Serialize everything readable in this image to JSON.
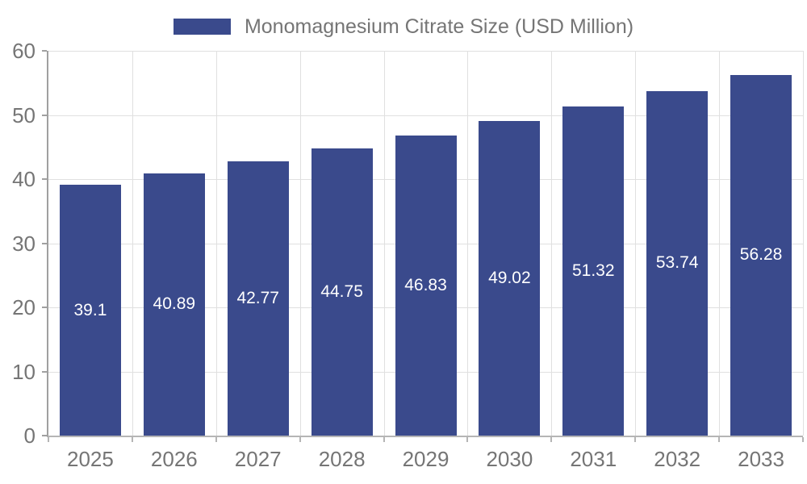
{
  "chart_data": {
    "type": "bar",
    "legend": "Monomagnesium Citrate Size (USD Million)",
    "categories": [
      "2025",
      "2026",
      "2027",
      "2028",
      "2029",
      "2030",
      "2031",
      "2032",
      "2033"
    ],
    "values": [
      39.1,
      40.89,
      42.77,
      44.75,
      46.83,
      49.02,
      51.32,
      53.74,
      56.28
    ],
    "value_labels": [
      "39.1",
      "40.89",
      "42.77",
      "44.75",
      "46.83",
      "49.02",
      "51.32",
      "53.74",
      "56.28"
    ],
    "yticks": [
      0,
      10,
      20,
      30,
      40,
      50,
      60
    ],
    "ylim": [
      0,
      60
    ],
    "grid": true,
    "legend_position": "top-center",
    "colors": {
      "bar": "#3A4A8C",
      "bar_value_text": "#FFFFFF",
      "axis_text": "#757575",
      "gridline": "#E0E0E0",
      "axis_line": "#ABABAB"
    }
  }
}
